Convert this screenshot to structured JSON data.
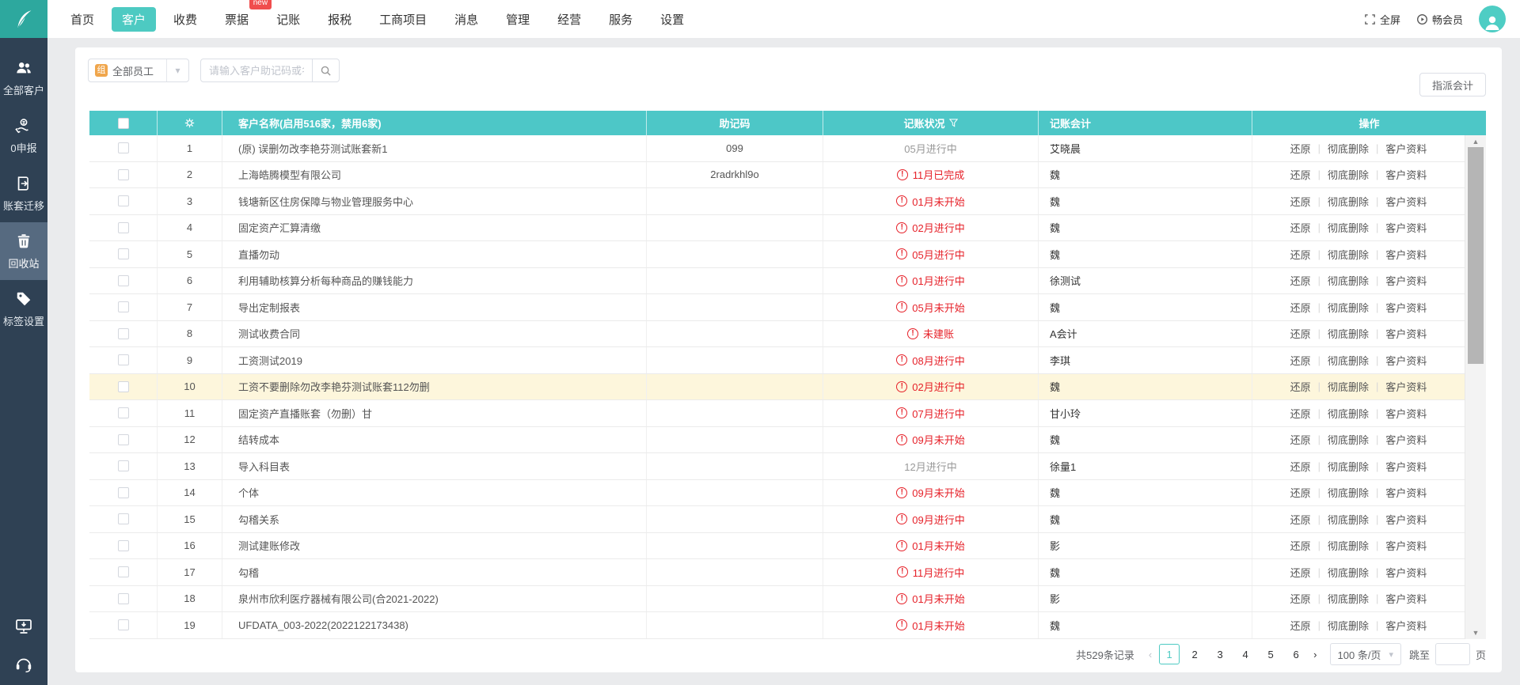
{
  "topnav": {
    "items": [
      {
        "label": "首页",
        "active": false
      },
      {
        "label": "客户",
        "active": true
      },
      {
        "label": "收费",
        "active": false
      },
      {
        "label": "票据",
        "active": false,
        "badge": "new"
      },
      {
        "label": "记账",
        "active": false
      },
      {
        "label": "报税",
        "active": false
      },
      {
        "label": "工商项目",
        "active": false
      },
      {
        "label": "消息",
        "active": false
      },
      {
        "label": "管理",
        "active": false
      },
      {
        "label": "经营",
        "active": false
      },
      {
        "label": "服务",
        "active": false
      },
      {
        "label": "设置",
        "active": false
      }
    ],
    "fullscreen_label": "全屏",
    "member_label": "畅会员"
  },
  "sidebar": {
    "items": [
      {
        "label": "全部客户",
        "icon": "users-icon",
        "active": false
      },
      {
        "label": "0申报",
        "icon": "declare-icon",
        "active": false
      },
      {
        "label": "账套迁移",
        "icon": "migrate-icon",
        "active": false
      },
      {
        "label": "回收站",
        "icon": "trash-icon",
        "active": true
      },
      {
        "label": "标签设置",
        "icon": "tag-icon",
        "active": false
      }
    ]
  },
  "toolbar": {
    "employee_filter_badge": "组",
    "employee_filter_value": "全部员工",
    "search_placeholder": "请输入客户助记码或名称",
    "assign_button": "指派会计"
  },
  "table": {
    "headers": {
      "name": "客户名称(启用516家，禁用6家)",
      "code": "助记码",
      "status": "记账状况",
      "accountant": "记账会计",
      "actions": "操作"
    },
    "action_labels": [
      "还原",
      "彻底删除",
      "客户资料"
    ],
    "rows": [
      {
        "index": 1,
        "name": "(原) 误删勿改李艳芬测试账套新1",
        "code": "099",
        "status": "05月进行中",
        "alert": false,
        "accountant": "艾晓晨",
        "highlight": false
      },
      {
        "index": 2,
        "name": "上海皓腾模型有限公司",
        "code": "2radrkhl9o",
        "status": "11月已完成",
        "alert": true,
        "accountant": "魏",
        "highlight": false
      },
      {
        "index": 3,
        "name": "钱塘新区住房保障与物业管理服务中心",
        "code": "",
        "status": "01月未开始",
        "alert": true,
        "accountant": "魏",
        "highlight": false
      },
      {
        "index": 4,
        "name": "固定资产汇算清缴",
        "code": "",
        "status": "02月进行中",
        "alert": true,
        "accountant": "魏",
        "highlight": false
      },
      {
        "index": 5,
        "name": "直播勿动",
        "code": "",
        "status": "05月进行中",
        "alert": true,
        "accountant": "魏",
        "highlight": false
      },
      {
        "index": 6,
        "name": "利用辅助核算分析每种商品的赚钱能力",
        "code": "",
        "status": "01月进行中",
        "alert": true,
        "accountant": "徐测试",
        "highlight": false
      },
      {
        "index": 7,
        "name": "导出定制报表",
        "code": "",
        "status": "05月未开始",
        "alert": true,
        "accountant": "魏",
        "highlight": false
      },
      {
        "index": 8,
        "name": "测试收费合同",
        "code": "",
        "status": "未建账",
        "alert": true,
        "accountant": "A会计",
        "highlight": false
      },
      {
        "index": 9,
        "name": "工资测试2019",
        "code": "",
        "status": "08月进行中",
        "alert": true,
        "accountant": "李琪",
        "highlight": false
      },
      {
        "index": 10,
        "name": "工资不要删除勿改李艳芬测试账套112勿删",
        "code": "",
        "status": "02月进行中",
        "alert": true,
        "accountant": "魏",
        "highlight": true
      },
      {
        "index": 11,
        "name": "固定资产直播账套（勿删）甘",
        "code": "",
        "status": "07月进行中",
        "alert": true,
        "accountant": "甘小玲",
        "highlight": false
      },
      {
        "index": 12,
        "name": "结转成本",
        "code": "",
        "status": "09月未开始",
        "alert": true,
        "accountant": "魏",
        "highlight": false
      },
      {
        "index": 13,
        "name": "导入科目表",
        "code": "",
        "status": "12月进行中",
        "alert": false,
        "accountant": "徐量1",
        "highlight": false
      },
      {
        "index": 14,
        "name": "个体",
        "code": "",
        "status": "09月未开始",
        "alert": true,
        "accountant": "魏",
        "highlight": false
      },
      {
        "index": 15,
        "name": "勾稽关系",
        "code": "",
        "status": "09月进行中",
        "alert": true,
        "accountant": "魏",
        "highlight": false
      },
      {
        "index": 16,
        "name": "测试建账修改",
        "code": "",
        "status": "01月未开始",
        "alert": true,
        "accountant": "影",
        "highlight": false
      },
      {
        "index": 17,
        "name": "勾稽",
        "code": "",
        "status": "11月进行中",
        "alert": true,
        "accountant": "魏",
        "highlight": false
      },
      {
        "index": 18,
        "name": "泉州市欣利医疗器械有限公司(合2021-2022)",
        "code": "",
        "status": "01月未开始",
        "alert": true,
        "accountant": "影",
        "highlight": false
      },
      {
        "index": 19,
        "name": "UFDATA_003-2022(2022122173438)",
        "code": "",
        "status": "01月未开始",
        "alert": true,
        "accountant": "魏",
        "highlight": false
      }
    ]
  },
  "pagination": {
    "total": "共529条记录",
    "pages": [
      "1",
      "2",
      "3",
      "4",
      "5",
      "6"
    ],
    "active_page": "1",
    "page_size": "100 条/页",
    "jump_label": "跳至",
    "page_unit": "页"
  },
  "colors": {
    "accent_teal": "#4dcac2",
    "table_header_teal": "#4dc7c7",
    "sidebar_navy": "#2f4154",
    "alert_red": "#e62129",
    "highlight_yellow": "#fdf6dc",
    "badge_red": "#f04d4d",
    "badge_orange": "#f0a64c"
  }
}
